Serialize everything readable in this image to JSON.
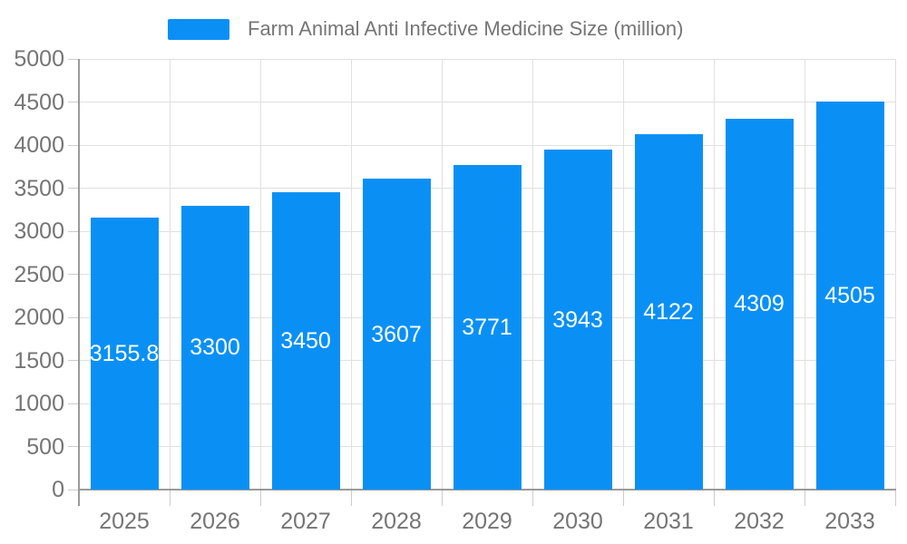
{
  "chart_data": {
    "type": "bar",
    "title": "Farm Animal Anti Infective Medicine Size (million)",
    "series_name": "Farm Animal Anti Infective Medicine Size (million)",
    "categories": [
      "2025",
      "2026",
      "2027",
      "2028",
      "2029",
      "2030",
      "2031",
      "2032",
      "2033"
    ],
    "values": [
      3155.8,
      3300,
      3450,
      3607,
      3771,
      3943,
      4122,
      4309,
      4505
    ],
    "value_labels": [
      "3155.8",
      "3300",
      "3450",
      "3607",
      "3771",
      "3943",
      "4122",
      "4309",
      "4505"
    ],
    "xlabel": "",
    "ylabel": "",
    "ylim": [
      0,
      5000
    ],
    "ytick_step": 500,
    "yticks": [
      0,
      500,
      1000,
      1500,
      2000,
      2500,
      3000,
      3500,
      4000,
      4500,
      5000
    ],
    "grid": true,
    "legend_position": "top",
    "bar_label_position": "inside-center"
  },
  "colors": {
    "bar": "#0A90F5",
    "grid": "#e0e0e0",
    "axis": "#999999",
    "tick": "#cccccc",
    "text": "#757575",
    "bar_label": "#ffffff",
    "background": "#ffffff"
  }
}
